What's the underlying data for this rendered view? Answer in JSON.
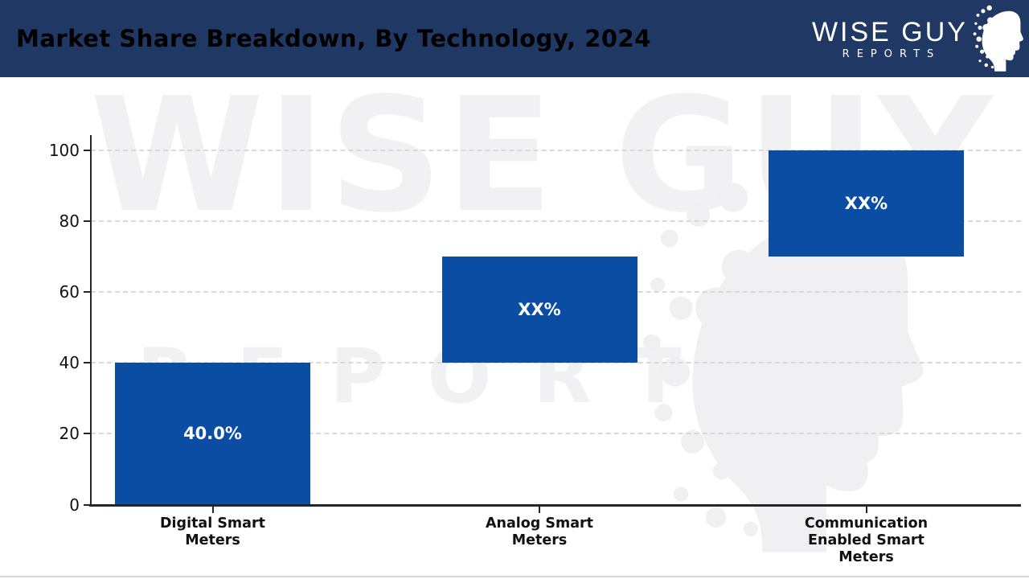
{
  "header": {
    "title": "Market Share Breakdown, By Technology, 2024",
    "bg_color": "#1f3864",
    "logo": {
      "line1": "WISE GUY",
      "line2": "REPORTS"
    }
  },
  "watermark": {
    "line1": "WISE GUY",
    "line2": "REPORTS"
  },
  "chart_data": {
    "type": "bar",
    "subtype": "floating-segment-bars",
    "title": "Market Share Breakdown, By Technology, 2024",
    "categories": [
      "Digital Smart\nMeters",
      "Analog Smart\nMeters",
      "Communication\nEnabled Smart\nMeters"
    ],
    "segments": [
      {
        "category": "Digital Smart Meters",
        "start": 0,
        "end": 40,
        "label": "40.0%"
      },
      {
        "category": "Analog Smart Meters",
        "start": 40,
        "end": 70,
        "label": "XX%"
      },
      {
        "category": "Communication Enabled Smart Meters",
        "start": 70,
        "end": 100,
        "label": "XX%"
      }
    ],
    "ylim": [
      0,
      100
    ],
    "yticks": [
      0,
      20,
      40,
      60,
      80,
      100
    ],
    "xlabel": "",
    "ylabel": "",
    "legend": "none",
    "grid": "horizontal-dashed",
    "bar_color": "#0b4da2",
    "value_label_color": "#ffffff"
  }
}
